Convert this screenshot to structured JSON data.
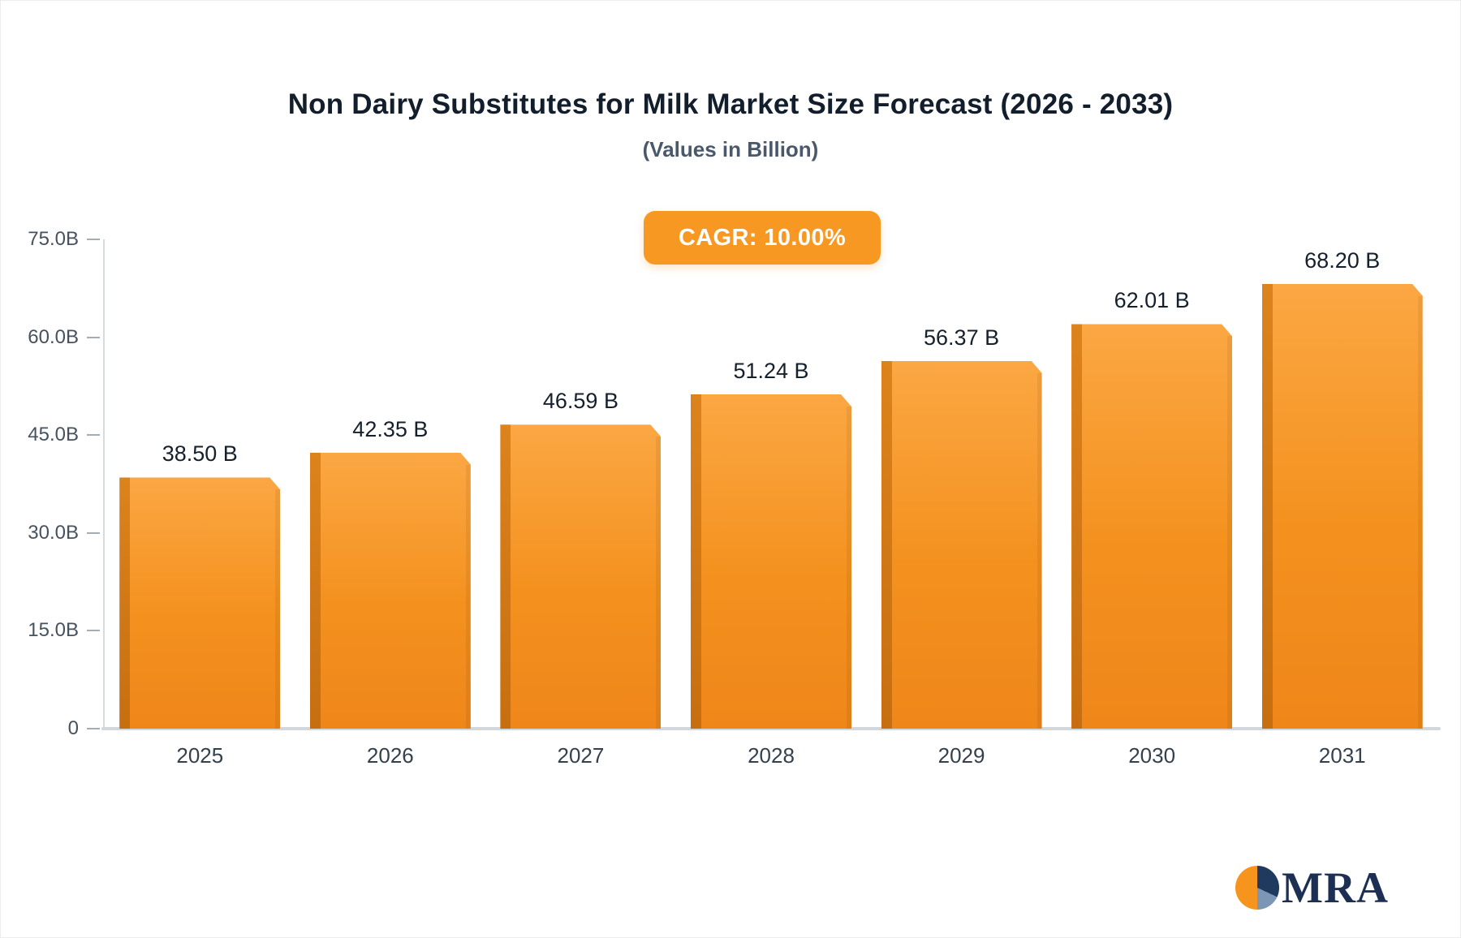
{
  "chart_data": {
    "type": "bar",
    "title": "Non Dairy Substitutes for Milk Market Size Forecast (2026 - 2033)",
    "subtitle": "(Values in Billion)",
    "badge": "CAGR: 10.00%",
    "categories": [
      "2025",
      "2026",
      "2027",
      "2028",
      "2029",
      "2030",
      "2031"
    ],
    "values": [
      38.5,
      42.35,
      46.59,
      51.24,
      56.37,
      62.01,
      68.2
    ],
    "data_labels": [
      "38.50 B",
      "42.35 B",
      "46.59 B",
      "51.24 B",
      "56.37 B",
      "62.01 B",
      "68.20 B"
    ],
    "xlabel": "",
    "ylabel": "",
    "ylim": [
      0,
      75
    ],
    "ytick_labels": [
      "75.0B",
      "60.0B",
      "45.0B",
      "30.0B",
      "15.0B",
      "0"
    ],
    "ytick_values": [
      75,
      60,
      45,
      30,
      15,
      0
    ],
    "grid": false,
    "legend": "none"
  },
  "logo": {
    "text": "MRA"
  },
  "colors": {
    "bar": "#F7941E",
    "bar_dark_edge": "#C76E10",
    "badge_bg": "#F79822",
    "badge_text": "#FFFFFF",
    "title_text": "#121E2C",
    "subtitle_text": "#49596B",
    "axis_line": "#D7DBDF",
    "logo_navy": "#1D3054",
    "logo_slate": "#7C97B5"
  }
}
